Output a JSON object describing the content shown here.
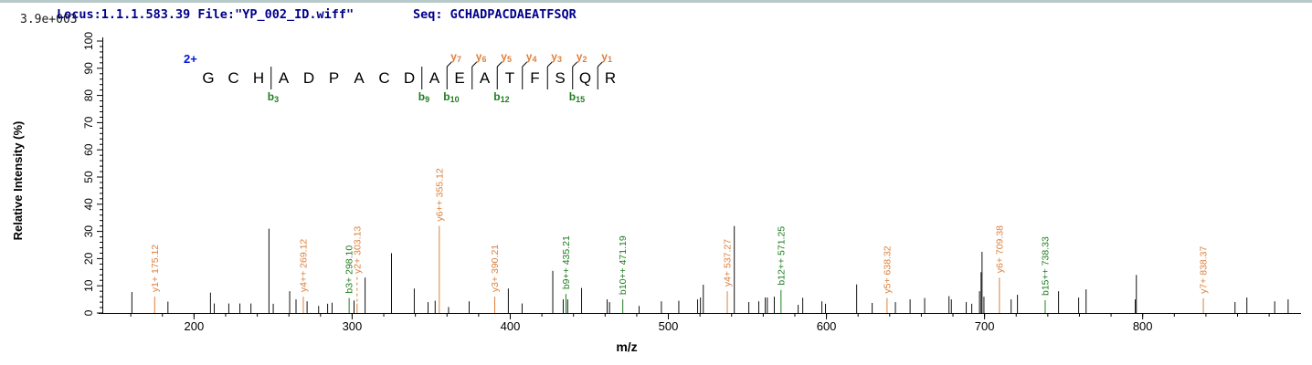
{
  "header": {
    "base_peak_intensity": "3.9e+003",
    "locus_file": "Locus:1.1.1.583.39 File:\"YP_002_ID.wiff\"",
    "seq_label": "Seq: GCHADPACDAEATFSQR"
  },
  "colors": {
    "navy": "#00008B",
    "charge_blue": "#0015d8",
    "y_ion_orange": "#DD7F3A",
    "b_ion_green": "#1E7D1E",
    "peak_black": "#111111",
    "axis": "#000000"
  },
  "chart_data": {
    "type": "bar",
    "subtype": "ms2-peptide-fragment-spectrum",
    "title": "",
    "xlabel": "m/z",
    "ylabel": "Relative  Intensity (%)",
    "xlim": [
      142,
      899
    ],
    "ylim": [
      0,
      100
    ],
    "x_major_ticks": [
      200,
      300,
      400,
      500,
      600,
      700,
      800
    ],
    "x_minor_step": 20,
    "y_major_step": 10,
    "y_minor_step": 2,
    "grid": false,
    "legend": "none",
    "sequence_panel": {
      "charge": "2+",
      "residues": [
        "G",
        "C",
        "H",
        "A",
        "D",
        "P",
        "A",
        "C",
        "D",
        "A",
        "E",
        "A",
        "T",
        "F",
        "S",
        "Q",
        "R"
      ],
      "b_ions": [
        {
          "name": "b",
          "num": "3",
          "after": 3
        },
        {
          "name": "b",
          "num": "9",
          "after": 9
        },
        {
          "name": "b",
          "num": "10",
          "after": 10
        },
        {
          "name": "b",
          "num": "12",
          "after": 12
        },
        {
          "name": "b",
          "num": "15",
          "after": 15
        }
      ],
      "y_ions": [
        {
          "name": "y",
          "num": "7",
          "after": 10
        },
        {
          "name": "y",
          "num": "6",
          "after": 11
        },
        {
          "name": "y",
          "num": "5",
          "after": 12
        },
        {
          "name": "y",
          "num": "4",
          "after": 13
        },
        {
          "name": "y",
          "num": "3",
          "after": 14
        },
        {
          "name": "y",
          "num": "2",
          "after": 15
        },
        {
          "name": "y",
          "num": "1",
          "after": 16
        }
      ]
    },
    "annotated_peaks": [
      {
        "mz": 175.12,
        "intensity": 6.0,
        "ion": "y",
        "label": "y1+ 175.12",
        "dashed": false
      },
      {
        "mz": 269.12,
        "intensity": 6.0,
        "ion": "y",
        "label": "y4++ 269.12",
        "dashed": false
      },
      {
        "mz": 298.1,
        "intensity": 5.5,
        "ion": "b",
        "label": "b3+ 298.10",
        "dashed": false
      },
      {
        "mz": 303.13,
        "intensity": 3.5,
        "ion": "y",
        "label": "y2+ 303.13",
        "dashed": true
      },
      {
        "mz": 355.12,
        "intensity": 32.0,
        "ion": "y",
        "label": "y6++ 355.12",
        "dashed": false
      },
      {
        "mz": 390.21,
        "intensity": 6.0,
        "ion": "y",
        "label": "y3+ 390.21",
        "dashed": false
      },
      {
        "mz": 435.21,
        "intensity": 7.0,
        "ion": "b",
        "label": "b9++ 435.21",
        "dashed": false
      },
      {
        "mz": 471.19,
        "intensity": 5.0,
        "ion": "b",
        "label": "b10++ 471.19",
        "dashed": false
      },
      {
        "mz": 537.27,
        "intensity": 8.0,
        "ion": "y",
        "label": "y4+ 537.27",
        "dashed": false
      },
      {
        "mz": 571.25,
        "intensity": 8.5,
        "ion": "b",
        "label": "b12++ 571.25",
        "dashed": false
      },
      {
        "mz": 638.32,
        "intensity": 5.5,
        "ion": "y",
        "label": "y5+ 638.32",
        "dashed": false
      },
      {
        "mz": 709.38,
        "intensity": 13.0,
        "ion": "y",
        "label": "y6+ 709.38",
        "dashed": false
      },
      {
        "mz": 738.33,
        "intensity": 4.7,
        "ion": "b",
        "label": "b15++ 738.33",
        "dashed": false
      },
      {
        "mz": 838.37,
        "intensity": 5.4,
        "ion": "y",
        "label": "y7+ 838.37",
        "dashed": false
      }
    ],
    "peaks": [
      [
        160.7,
        7.7
      ],
      [
        183.5,
        4.2
      ],
      [
        210.4,
        7.5
      ],
      [
        212.8,
        3.5
      ],
      [
        222,
        3.5
      ],
      [
        229,
        3.5
      ],
      [
        236,
        3.5
      ],
      [
        247.4,
        31
      ],
      [
        250.1,
        3.4
      ],
      [
        260.5,
        8
      ],
      [
        264.5,
        5
      ],
      [
        271.5,
        4.3
      ],
      [
        278.8,
        2.6
      ],
      [
        284.5,
        3.4
      ],
      [
        287.3,
        3.8
      ],
      [
        301.2,
        4.6
      ],
      [
        308.2,
        13
      ],
      [
        324.9,
        22
      ],
      [
        339.3,
        9
      ],
      [
        348,
        4
      ],
      [
        352.5,
        4.5
      ],
      [
        361,
        2.2
      ],
      [
        374,
        4.3
      ],
      [
        398.8,
        9
      ],
      [
        407.5,
        3.5
      ],
      [
        426.9,
        15.5
      ],
      [
        433.5,
        5
      ],
      [
        436.3,
        5
      ],
      [
        445.1,
        9.2
      ],
      [
        461.3,
        5
      ],
      [
        462.8,
        4
      ],
      [
        481.5,
        2.6
      ],
      [
        495.6,
        4.3
      ],
      [
        506.6,
        4.5
      ],
      [
        518.5,
        5
      ],
      [
        520.3,
        5.7
      ],
      [
        522.1,
        10.4
      ],
      [
        541.7,
        32
      ],
      [
        550.9,
        4
      ],
      [
        557.2,
        4.3
      ],
      [
        561.3,
        5.7
      ],
      [
        562.6,
        5.7
      ],
      [
        567,
        6
      ],
      [
        582.1,
        3
      ],
      [
        585,
        5.6
      ],
      [
        597.1,
        4.3
      ],
      [
        599.4,
        3.4
      ],
      [
        619.1,
        10.5
      ],
      [
        628.9,
        3.7
      ],
      [
        643.6,
        4
      ],
      [
        652.9,
        5
      ],
      [
        662.1,
        5.5
      ],
      [
        677.5,
        6.2
      ],
      [
        679,
        5
      ],
      [
        688.4,
        4
      ],
      [
        691.9,
        3.4
      ],
      [
        696.8,
        8
      ],
      [
        697.8,
        15
      ],
      [
        698.4,
        22.5
      ],
      [
        699.6,
        6
      ],
      [
        716.8,
        5
      ],
      [
        720.8,
        6.7
      ],
      [
        746.8,
        8
      ],
      [
        759.5,
        5.7
      ],
      [
        764.2,
        8.7
      ],
      [
        795.3,
        5
      ],
      [
        796,
        14
      ],
      [
        858.4,
        4
      ],
      [
        865.9,
        5.7
      ],
      [
        883.5,
        4.3
      ],
      [
        892,
        5
      ]
    ]
  }
}
